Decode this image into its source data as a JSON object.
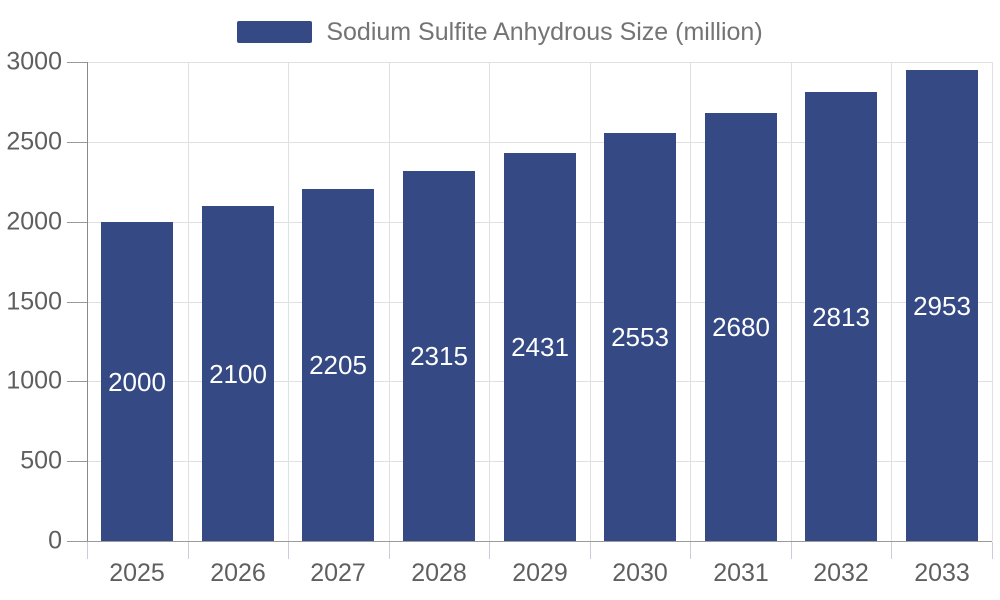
{
  "chart_data": {
    "type": "bar",
    "title": "",
    "categories": [
      "2025",
      "2026",
      "2027",
      "2028",
      "2029",
      "2030",
      "2031",
      "2032",
      "2033"
    ],
    "series": [
      {
        "name": "Sodium Sulfite Anhydrous Size (million)",
        "values": [
          2000,
          2100,
          2205,
          2315,
          2431,
          2553,
          2680,
          2813,
          2953
        ]
      }
    ],
    "xlabel": "",
    "ylabel": "",
    "ylim": [
      0,
      3000
    ],
    "yticks": [
      0,
      500,
      1000,
      1500,
      2000,
      2500,
      3000
    ],
    "grid": true,
    "legend_position": "top-center",
    "value_label_position": "inside-center",
    "colors": {
      "bar": "#354a85",
      "bar_value_label": "#ffffff",
      "legend_text": "#747474",
      "axis_tick_label": "#5f5f5f",
      "grid_line": "#e0e0e4",
      "y_axis_line": "#8a8a8a",
      "x_axis_line": "#9a9a9a",
      "y_tick_mark": "#999999",
      "x_tick_mark": "#ccccd8",
      "background": "#ffffff"
    }
  }
}
